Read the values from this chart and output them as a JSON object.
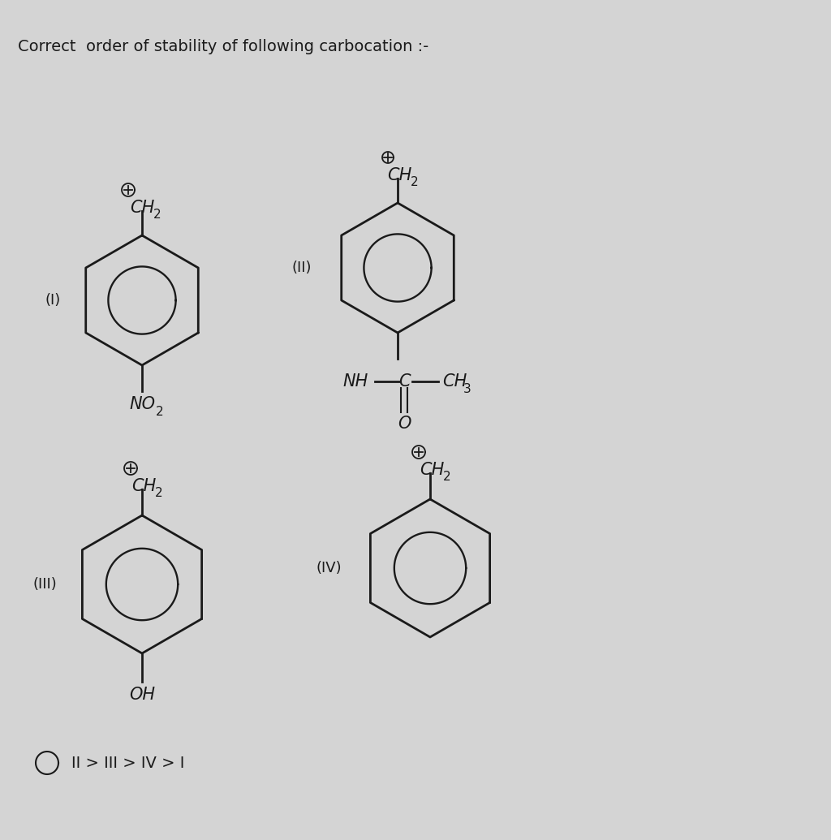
{
  "title": "Correct  order of stability of following carbocation :-",
  "title_fontsize": 14,
  "answer_text": "II > III > IV > I",
  "answer_fontsize": 14,
  "bg_color": "#d4d4d4",
  "text_color": "#1a1a1a",
  "label_I": "(I)",
  "label_II": "(II)",
  "label_III": "(III)",
  "label_IV": "(IV)",
  "sub_no2": "NO",
  "sub_nh": "NH",
  "sub_oh": "OH",
  "sub_c": "C",
  "sub_ch3": "CH",
  "sub_ch2": "CH"
}
